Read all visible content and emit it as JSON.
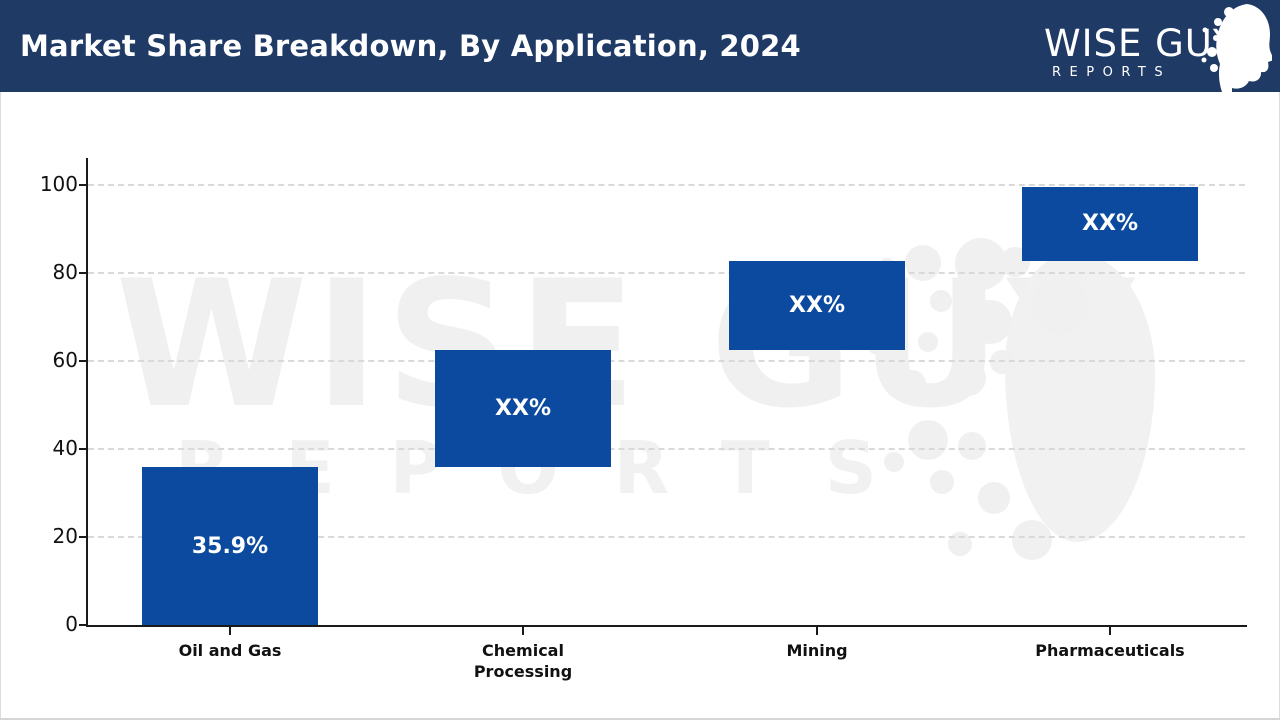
{
  "header": {
    "title": "Market Share Breakdown, By Application, 2024",
    "bg_color": "#203a66",
    "logo": {
      "line1": "WISE GUY",
      "line2": "REPORTS"
    }
  },
  "watermark": {
    "line1": "WISE GUY",
    "line2": "REPORTS"
  },
  "chart_data": {
    "type": "bar",
    "variant": "waterfall-stacked-percentage",
    "title": "Market Share Breakdown, By Application, 2024",
    "categories": [
      "Oil and Gas",
      "Chemical Processing",
      "Mining",
      "Pharmaceuticals"
    ],
    "segments": [
      {
        "category": "Oil and Gas",
        "start": 0,
        "end": 35.9,
        "label": "35.9%"
      },
      {
        "category": "Chemical Processing",
        "start": 35.9,
        "end": 62.6,
        "label": "XX%"
      },
      {
        "category": "Mining",
        "start": 62.6,
        "end": 82.7,
        "label": "XX%"
      },
      {
        "category": "Pharmaceuticals",
        "start": 82.7,
        "end": 99.6,
        "label": "XX%"
      }
    ],
    "xlabel": "",
    "ylabel": "",
    "yticks": [
      0,
      20,
      40,
      60,
      80,
      100
    ],
    "ylim": [
      0,
      106
    ],
    "grid": "horizontal-dashed",
    "legend_position": "none",
    "bar_color": "#0b4a9e",
    "bar_label_color": "#ffffff",
    "axis_color": "#1a1a1a",
    "grid_color": "#d9d9d9"
  }
}
